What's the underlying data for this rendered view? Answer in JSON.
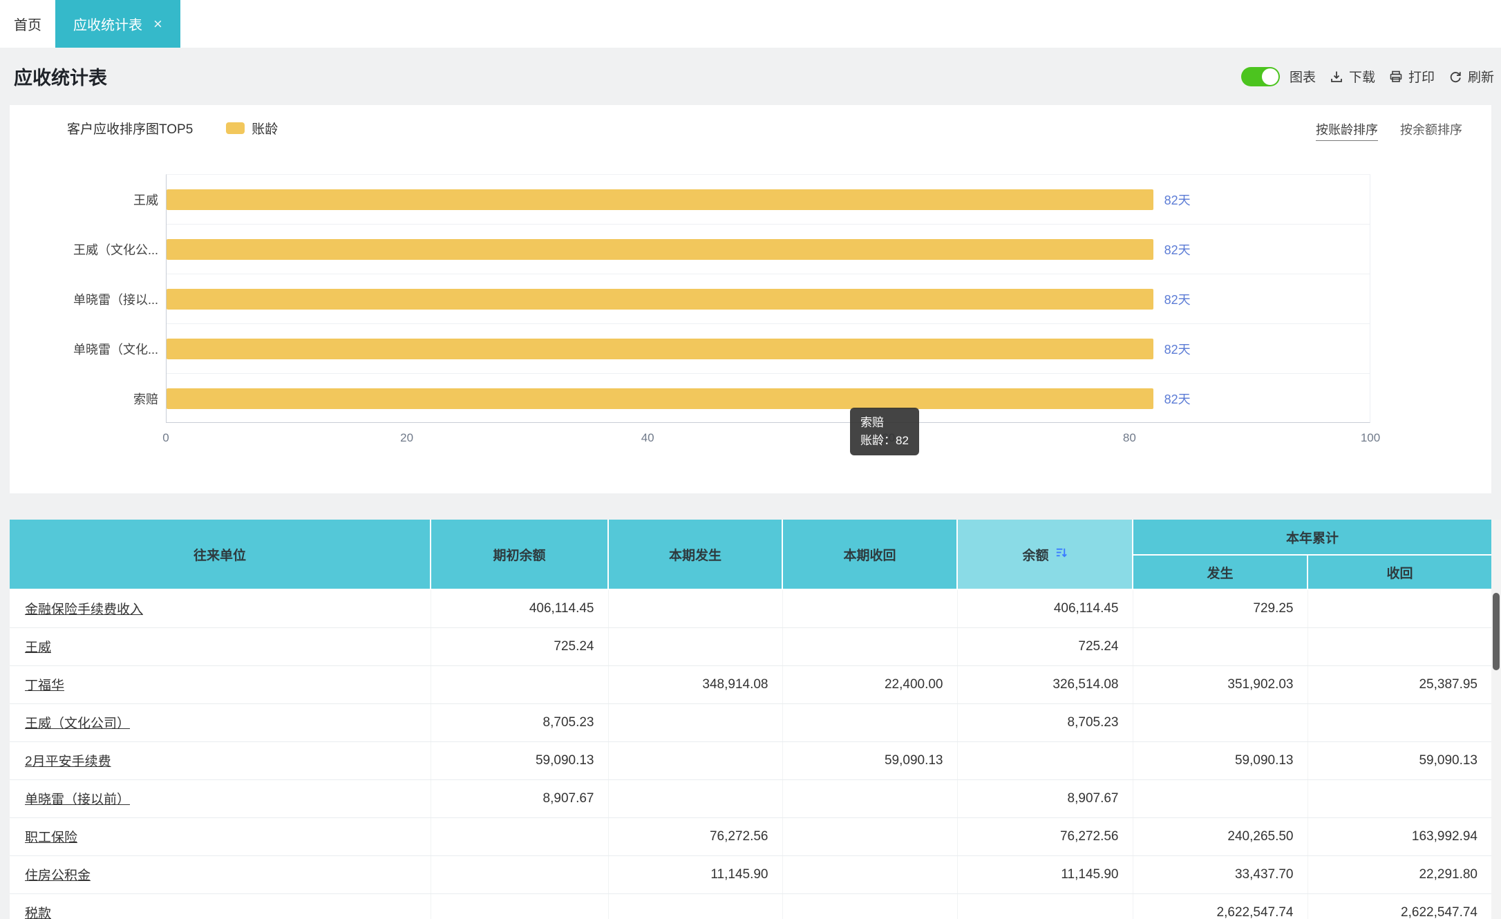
{
  "tabs": {
    "home": "首页",
    "active_tab": "应收统计表",
    "close": "×"
  },
  "page": {
    "title": "应收统计表"
  },
  "toolbar": {
    "chart_toggle": "图表",
    "download": "下载",
    "print": "打印",
    "refresh": "刷新"
  },
  "chart": {
    "title": "客户应收排序图TOP5",
    "legend_label": "账龄",
    "sort_age": "按账龄排序",
    "sort_balance": "按余额排序",
    "tooltip_title": "索赔",
    "tooltip_value": "账龄：82"
  },
  "chart_data": {
    "type": "bar",
    "orientation": "horizontal",
    "title": "客户应收排序图TOP5",
    "series_name": "账龄",
    "categories": [
      "王威",
      "王威（文化公...",
      "单晓雷（接以...",
      "单晓雷（文化...",
      "索赔"
    ],
    "values": [
      82,
      82,
      82,
      82,
      82
    ],
    "value_suffix": "天",
    "xlim": [
      0,
      100
    ],
    "x_ticks": [
      0,
      20,
      40,
      60,
      80,
      100
    ],
    "bar_color": "#f2c75c",
    "legend_position": "top",
    "grid": true
  },
  "table": {
    "headers": {
      "company": "往来单位",
      "opening_balance": "期初余额",
      "period_occurred": "本期发生",
      "period_received": "本期收回",
      "balance": "余额",
      "year_total": "本年累计",
      "year_occurred": "发生",
      "year_received": "收回"
    },
    "rows": [
      {
        "company": "金融保险手续费收入",
        "opening": "406,114.45",
        "occurred": "",
        "received": "",
        "balance": "406,114.45",
        "year_occurred": "729.25",
        "year_received": ""
      },
      {
        "company": "王威",
        "opening": "725.24",
        "occurred": "",
        "received": "",
        "balance": "725.24",
        "year_occurred": "",
        "year_received": ""
      },
      {
        "company": "丁福华",
        "opening": "",
        "occurred": "348,914.08",
        "received": "22,400.00",
        "balance": "326,514.08",
        "year_occurred": "351,902.03",
        "year_received": "25,387.95"
      },
      {
        "company": "王威（文化公司）",
        "opening": "8,705.23",
        "occurred": "",
        "received": "",
        "balance": "8,705.23",
        "year_occurred": "",
        "year_received": ""
      },
      {
        "company": "2月平安手续费",
        "opening": "59,090.13",
        "occurred": "",
        "received": "59,090.13",
        "balance": "",
        "year_occurred": "59,090.13",
        "year_received": "59,090.13"
      },
      {
        "company": "单晓雷（接以前）",
        "opening": "8,907.67",
        "occurred": "",
        "received": "",
        "balance": "8,907.67",
        "year_occurred": "",
        "year_received": ""
      },
      {
        "company": "职工保险",
        "opening": "",
        "occurred": "76,272.56",
        "received": "",
        "balance": "76,272.56",
        "year_occurred": "240,265.50",
        "year_received": "163,992.94"
      },
      {
        "company": "住房公积金",
        "opening": "",
        "occurred": "11,145.90",
        "received": "",
        "balance": "11,145.90",
        "year_occurred": "33,437.70",
        "year_received": "22,291.80"
      },
      {
        "company": "税款",
        "opening": "",
        "occurred": "",
        "received": "",
        "balance": "",
        "year_occurred": "2,622,547.74",
        "year_received": "2,622,547.74"
      }
    ]
  },
  "colors": {
    "accent_teal": "#35b9ca",
    "table_header": "#54c8d8",
    "table_header_sorted": "#8adbe6",
    "bar_yellow": "#f2c75c",
    "toggle_green": "#4cc41f",
    "value_label_blue": "#5b7bd5",
    "sort_icon_blue": "#3b7cff"
  }
}
